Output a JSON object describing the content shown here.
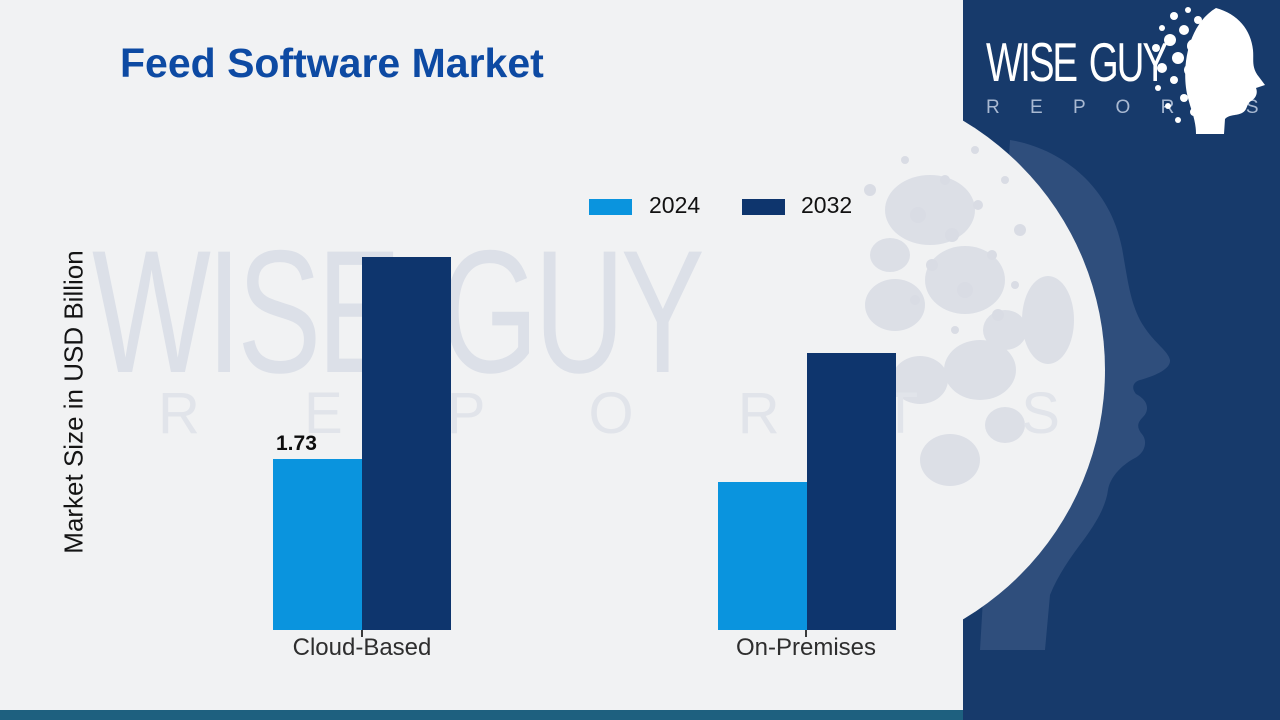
{
  "title": {
    "text": "Feed Software Market",
    "color": "#0d4aa3"
  },
  "logo": {
    "line1": "WISE GUY",
    "line2": "R E P O R T S"
  },
  "watermark": {
    "line1": "WISE GUY",
    "line2": "R E P O R T S"
  },
  "colors": {
    "background": "#f1f2f3",
    "panel": "#173a6b",
    "face_silhouette": "#2f4e7c",
    "footer": "#1e607f",
    "watermark_text": "#dce0e8",
    "title_blue": "#0d4aa3"
  },
  "chart_data": {
    "type": "bar",
    "title": "Feed Software Market",
    "xlabel": "",
    "ylabel": "Market Size in USD Billion",
    "categories": [
      "Cloud-Based",
      "On-Premises"
    ],
    "series": [
      {
        "name": "2024",
        "color": "#0a94de",
        "values": [
          1.73,
          1.5
        ]
      },
      {
        "name": "2032",
        "color": "#0e356d",
        "values": [
          3.78,
          2.8
        ]
      }
    ],
    "data_labels": [
      {
        "series": "2024",
        "category": "Cloud-Based",
        "text": "1.73"
      }
    ],
    "legend_position": "top",
    "grid": false,
    "ylim": [
      0,
      4.2
    ]
  }
}
